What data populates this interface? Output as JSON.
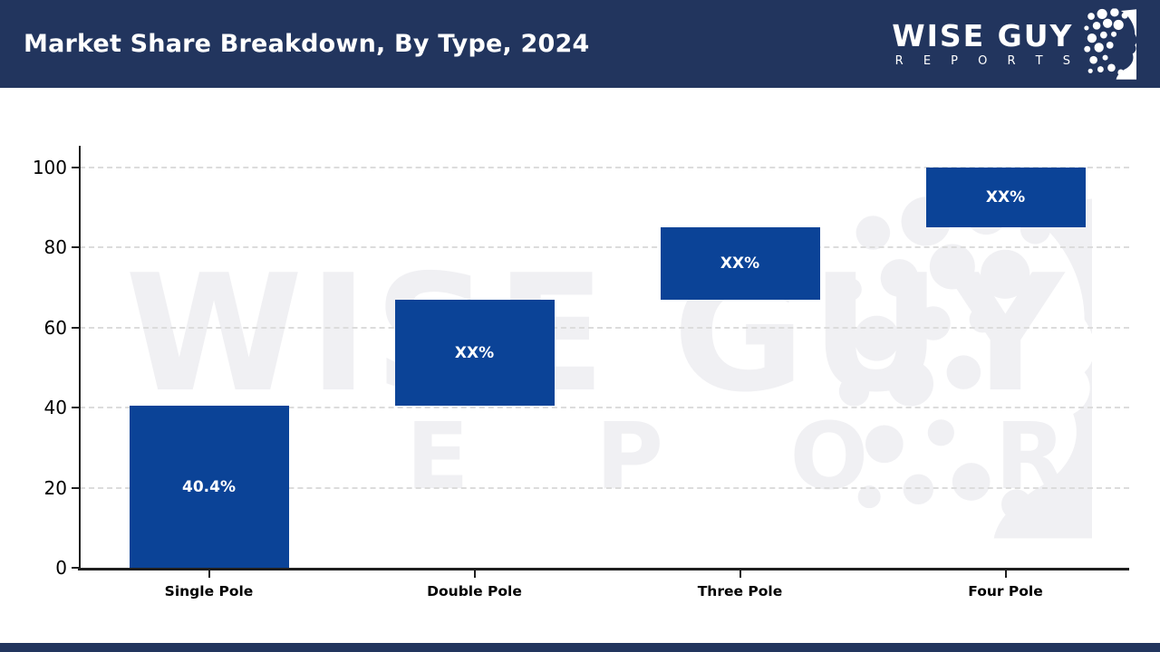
{
  "header": {
    "title": "Market Share Breakdown, By Type, 2024",
    "logo": {
      "name": "WISE GUY",
      "tagline": "R E P O R T S"
    }
  },
  "watermark": {
    "line1": "WISE GUY",
    "line2": "R E P O R T S"
  },
  "theme": {
    "navy": "#22355E",
    "grid_color": "#DCDCDC",
    "axis_color": "#1F1F1F",
    "watermark_color": "#F0F0F3"
  },
  "chart_data": {
    "type": "bar",
    "subtype": "floating-waterfall",
    "title": "Market Share Breakdown, By Type, 2024",
    "categories": [
      "Single Pole",
      "Double Pole",
      "Three Pole",
      "Four Pole"
    ],
    "segments": [
      {
        "category": "Single Pole",
        "start": 0,
        "end": 40.4,
        "label": "40.4%"
      },
      {
        "category": "Double Pole",
        "start": 40.4,
        "end": 67,
        "label": "XX%"
      },
      {
        "category": "Three Pole",
        "start": 67,
        "end": 85,
        "label": "XX%"
      },
      {
        "category": "Four Pole",
        "start": 85,
        "end": 100,
        "label": "XX%"
      }
    ],
    "xlabel": "",
    "ylabel": "",
    "ylim": [
      0,
      100
    ],
    "yticks": [
      0,
      20,
      40,
      60,
      80,
      100
    ],
    "grid": "horizontal-dashed",
    "legend": "none",
    "bar_color": "#0B4397",
    "bar_label_color": "#FFFFFF"
  }
}
